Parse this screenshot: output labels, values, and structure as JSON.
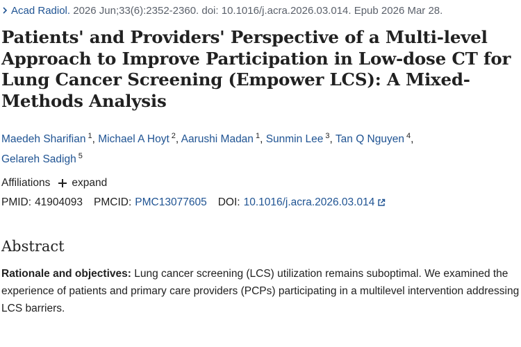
{
  "citation": {
    "journal": "Acad Radiol.",
    "details": "2026 Jun;33(6):2352-2360. doi: 10.1016/j.acra.2026.03.014. Epub 2026 Mar 28."
  },
  "title": "Patients' and Providers' Perspective of a Multi-level Approach to Improve Participation in Low-dose CT for Lung Cancer Screening (Empower LCS): A Mixed-Methods Analysis",
  "authors": [
    {
      "name": "Maedeh Sharifian",
      "aff": "1"
    },
    {
      "name": "Michael A Hoyt",
      "aff": "2"
    },
    {
      "name": "Aarushi Madan",
      "aff": "1"
    },
    {
      "name": "Sunmin Lee",
      "aff": "3"
    },
    {
      "name": "Tan Q Nguyen",
      "aff": "4"
    },
    {
      "name": "Gelareh Sadigh",
      "aff": "5"
    }
  ],
  "affiliations": {
    "label": "Affiliations",
    "expand_label": "expand"
  },
  "ids": {
    "pmid_label": "PMID:",
    "pmid": "41904093",
    "pmcid_label": "PMCID:",
    "pmcid": "PMC13077605",
    "doi_label": "DOI:",
    "doi": "10.1016/j.acra.2026.03.014"
  },
  "abstract": {
    "heading": "Abstract",
    "section_label": "Rationale and objectives:",
    "section_text": "Lung cancer screening (LCS) utilization remains suboptimal. We examined the experience of patients and primary care providers (PCPs) participating in a multilevel intervention addressing LCS barriers."
  },
  "colors": {
    "link": "#205493",
    "text": "#212121",
    "muted": "#5b616b"
  },
  "icons": {
    "citation": "chevron-right-icon",
    "expand": "plus-icon",
    "doi": "external-link-icon"
  }
}
